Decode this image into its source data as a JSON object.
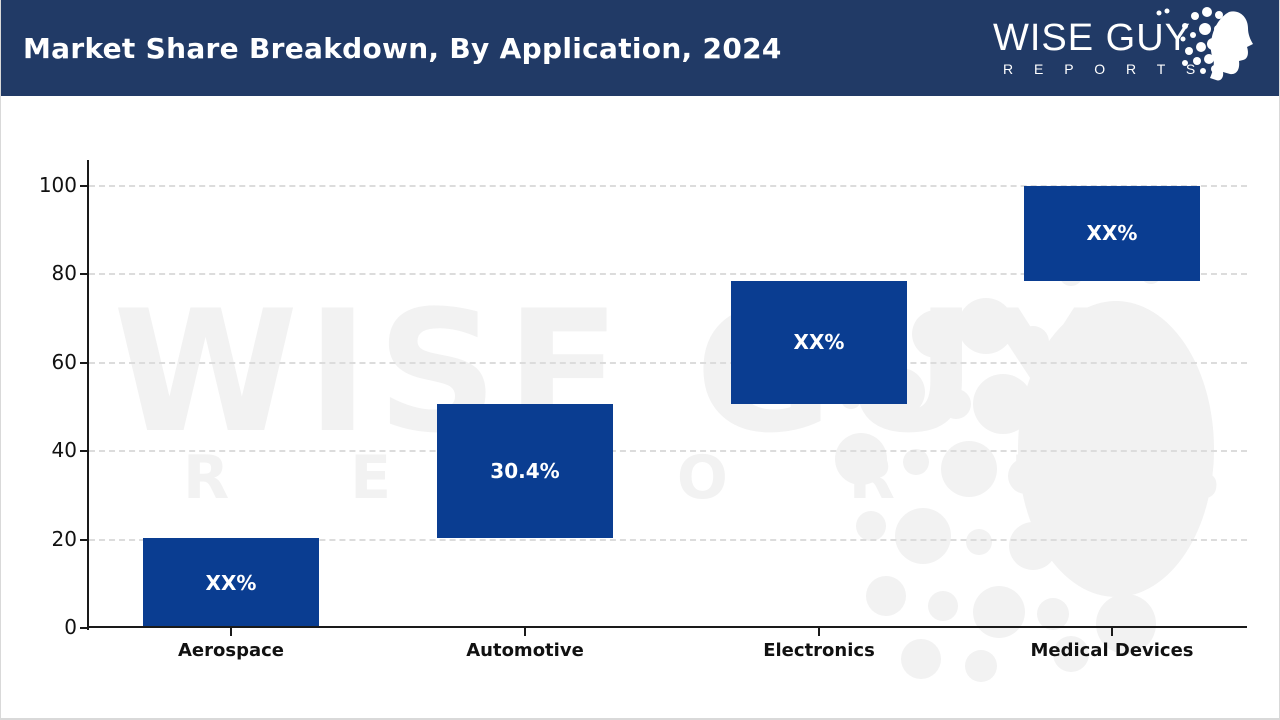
{
  "header": {
    "title": "Market Share Breakdown, By Application, 2024",
    "logo": {
      "line1": "WISE GUY",
      "line2": "R E P O R T S"
    }
  },
  "watermark": {
    "line1": "WISE GUY",
    "line2": "R E P O R T S"
  },
  "chart_data": {
    "type": "bar",
    "subtype": "waterfall",
    "title": "Market Share Breakdown, By Application, 2024",
    "categories": [
      "Aerospace",
      "Automotive",
      "Electronics",
      "Medical Devices"
    ],
    "bars": [
      {
        "category": "Aerospace",
        "start": 0,
        "end": 20.3,
        "label": "XX%"
      },
      {
        "category": "Automotive",
        "start": 20.3,
        "end": 50.7,
        "label": "30.4%"
      },
      {
        "category": "Electronics",
        "start": 50.7,
        "end": 78.6,
        "label": "XX%"
      },
      {
        "category": "Medical Devices",
        "start": 78.6,
        "end": 100,
        "label": "XX%"
      }
    ],
    "xlabel": "",
    "ylabel": "",
    "ylim": [
      0,
      100
    ],
    "yticks": [
      0,
      20,
      40,
      60,
      80,
      100
    ],
    "grid": "horizontal-dashed",
    "legend_position": "none",
    "bar_color": "#0a3d91",
    "bar_label_color": "#ffffff",
    "header_color": "#213a66",
    "gridline_color": "#dcdcdc",
    "axis_color": "#1a1a1a"
  }
}
